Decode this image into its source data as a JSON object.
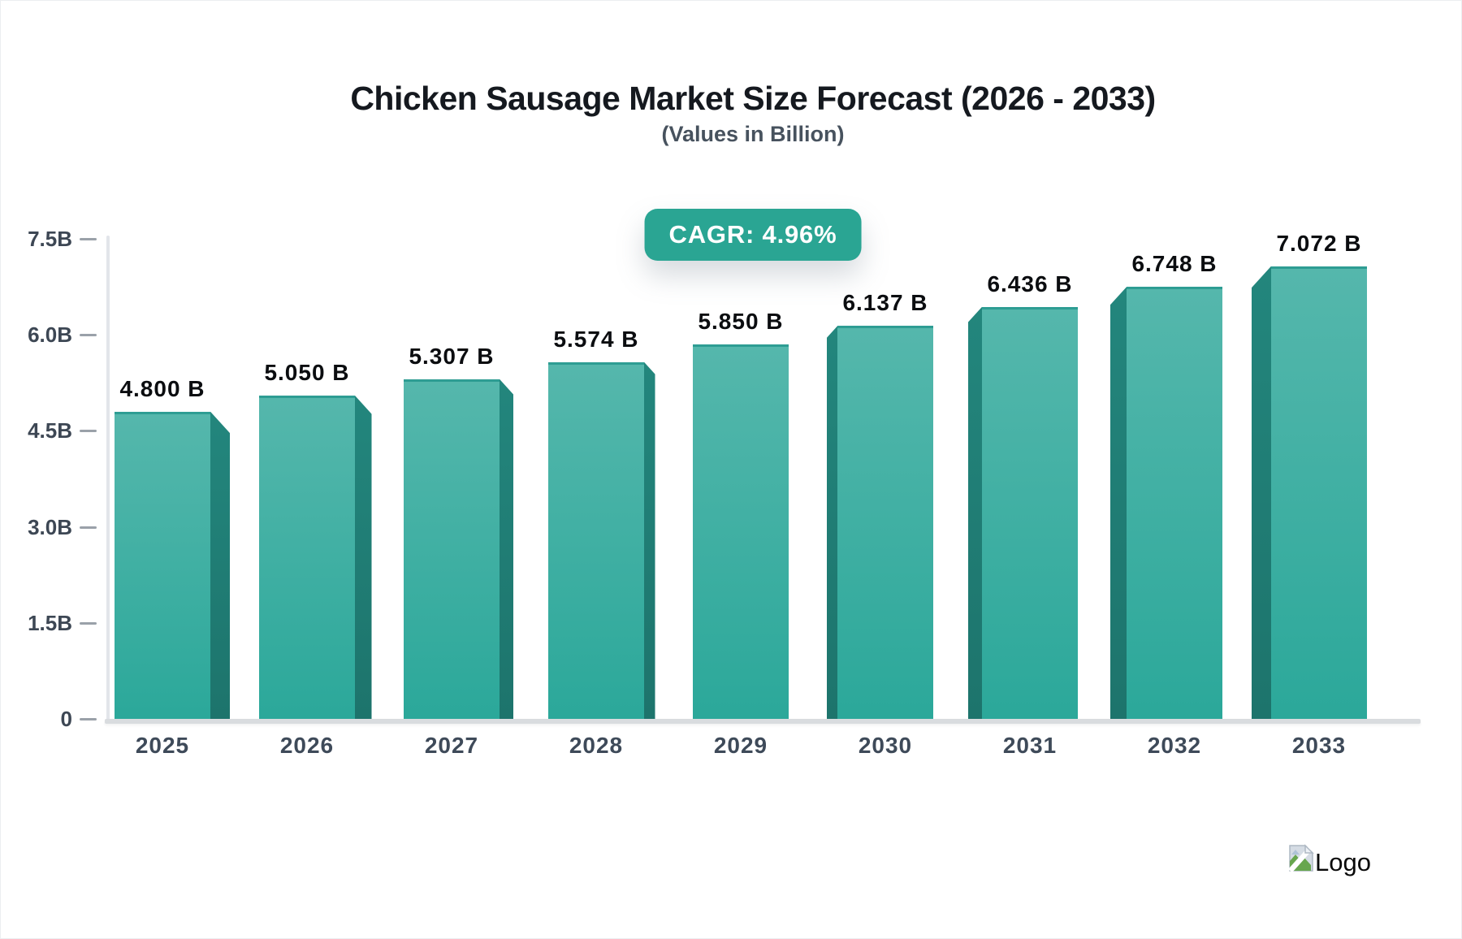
{
  "header": {
    "title": "Chicken Sausage Market Size Forecast (2026 - 2033)",
    "subtitle": "(Values in Billion)"
  },
  "badge": {
    "label": "CAGR: 4.96%"
  },
  "chart_data": {
    "type": "bar",
    "title": "Chicken Sausage Market Size Forecast (2026 - 2033)",
    "subtitle": "(Values in Billion)",
    "cagr_annotation": "CAGR: 4.96%",
    "categories": [
      "2025",
      "2026",
      "2027",
      "2028",
      "2029",
      "2030",
      "2031",
      "2032",
      "2033"
    ],
    "values": [
      4.8,
      5.05,
      5.307,
      5.574,
      5.85,
      6.137,
      6.436,
      6.748,
      7.072
    ],
    "value_labels": [
      "4.800 B",
      "5.050 B",
      "5.307 B",
      "5.574 B",
      "5.850 B",
      "6.137 B",
      "6.436 B",
      "6.748 B",
      "7.072 B"
    ],
    "xlabel": "",
    "ylabel": "",
    "ylim": [
      0,
      7.5
    ],
    "yticks": {
      "values": [
        0,
        1.5,
        3.0,
        4.5,
        6.0,
        7.5
      ],
      "labels": [
        "0",
        "1.5B",
        "3.0B",
        "4.5B",
        "6.0B",
        "7.5B"
      ]
    },
    "grid": false,
    "legend": null,
    "bar_style": "3d-perspective-toward-center"
  },
  "colors": {
    "bar_face_top": "#55b7ac",
    "bar_face_bottom": "#2ba89a",
    "bar_top_edge": "#2e9d93",
    "bar_side_top": "#23867d",
    "bar_side_bottom": "#1d746c",
    "badge_bg": "#2aa593",
    "axis_line": "#e2e5ea",
    "baseline": "#d9dcdf",
    "tick_dash": "#9aa1a9",
    "tick_label": "#3d4754"
  },
  "logo": {
    "alt_text": "Logo"
  }
}
